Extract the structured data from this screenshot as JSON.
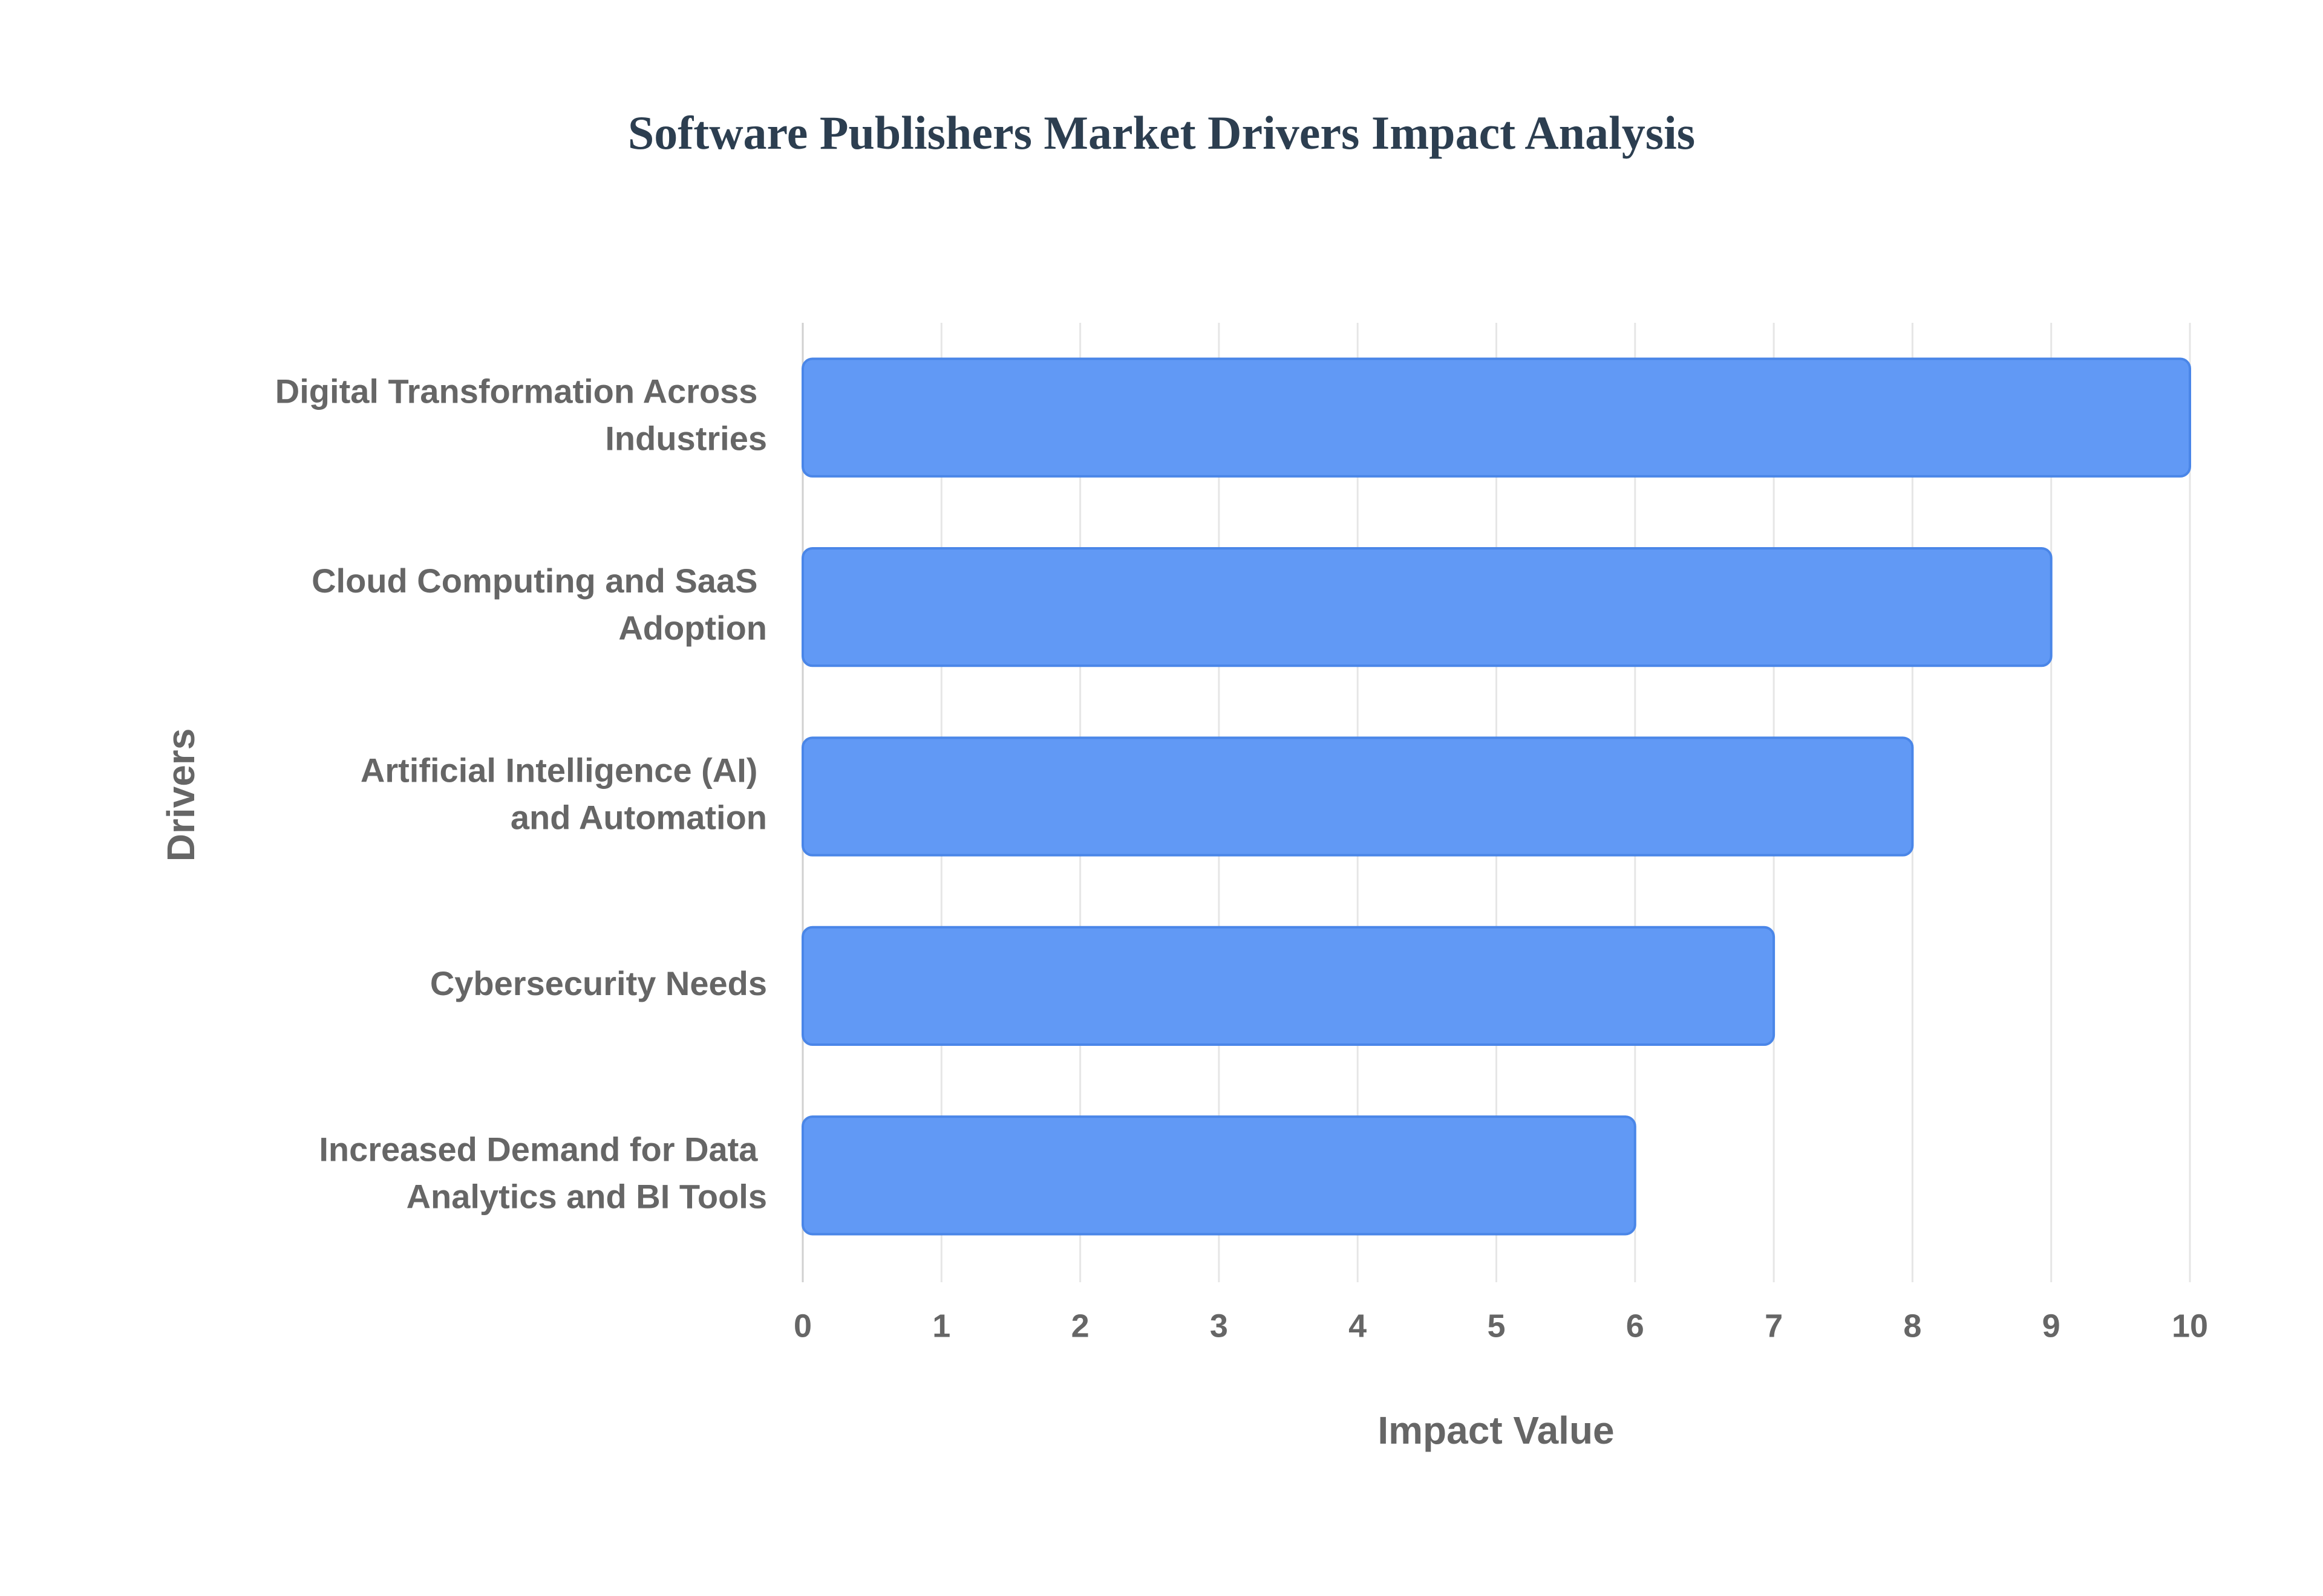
{
  "chart_data": {
    "type": "hbar",
    "title": "Software Publishers Market Drivers Impact Analysis",
    "x_label": "Impact Value",
    "y_label": "Drivers",
    "categories": [
      "Digital Transformation Across Industries",
      "Cloud Computing and SaaS Adoption",
      "Artificial Intelligence (AI) and Automation",
      "Cybersecurity Needs",
      "Increased Demand for Data Analytics and BI Tools"
    ],
    "values": [
      10,
      9,
      8,
      7,
      6
    ],
    "color": "#6199f5",
    "xlim": [
      0,
      10
    ],
    "xticks": [
      0,
      1,
      2,
      3,
      4,
      5,
      6,
      7,
      8,
      9,
      10
    ],
    "grid": true
  }
}
